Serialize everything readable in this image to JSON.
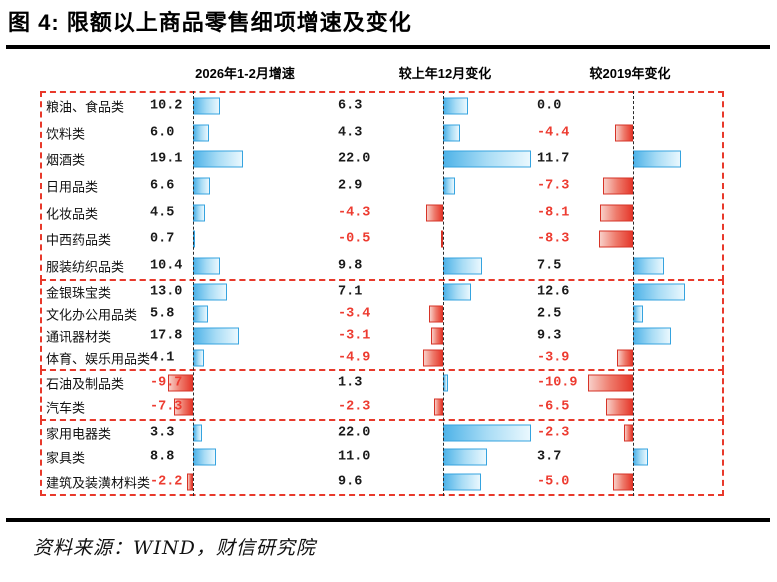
{
  "title": "图 4:  限额以上商品零售细项增速及变化",
  "source": "资料来源：WIND，财信研究院",
  "colors": {
    "positive_bar": "#4fb3e8",
    "negative_bar": "#e5382b",
    "bar_border_blue": "#35a3df",
    "bar_border_red": "#d63327",
    "negative_text": "#ed3b30",
    "positive_text": "#1a1a1a",
    "group_border": "#e8392b"
  },
  "chart_data": {
    "type": "bar",
    "orientation": "horizontal",
    "series_names": [
      "2026年1-2月增速",
      "较上年12月变化",
      "较2019年变化"
    ],
    "unit": "%",
    "axis_note": "three panels sharing category rows; bars extend from zero axis, blue=positive, red=negative",
    "groups": [
      {
        "rows": [
          {
            "label": "粮油、食品类",
            "values": [
              "10.2",
              "6.3",
              "0.0"
            ]
          },
          {
            "label": "饮料类",
            "values": [
              "6.0",
              "4.3",
              "-4.4"
            ]
          },
          {
            "label": "烟酒类",
            "values": [
              "19.1",
              "22.0",
              "11.7"
            ]
          },
          {
            "label": "日用品类",
            "values": [
              "6.6",
              "2.9",
              "-7.3"
            ]
          },
          {
            "label": "化妆品类",
            "values": [
              "4.5",
              "-4.3",
              "-8.1"
            ]
          },
          {
            "label": "中西药品类",
            "values": [
              "0.7",
              "-0.5",
              "-8.3"
            ]
          },
          {
            "label": "服装纺织品类",
            "values": [
              "10.4",
              "9.8",
              "7.5"
            ]
          }
        ]
      },
      {
        "rows": [
          {
            "label": "金银珠宝类",
            "values": [
              "13.0",
              "7.1",
              "12.6"
            ]
          },
          {
            "label": "文化办公用品类",
            "values": [
              "5.8",
              "-3.4",
              "2.5"
            ]
          },
          {
            "label": "通讯器材类",
            "values": [
              "17.8",
              "-3.1",
              "9.3"
            ]
          },
          {
            "label": "体育、娱乐用品类",
            "values": [
              "4.1",
              "-4.9",
              "-3.9"
            ]
          }
        ]
      },
      {
        "rows": [
          {
            "label": "石油及制品类",
            "values": [
              "-9.7",
              "1.3",
              "-10.9"
            ]
          },
          {
            "label": "汽车类",
            "values": [
              "-7.3",
              "-2.3",
              "-6.5"
            ]
          }
        ]
      },
      {
        "rows": [
          {
            "label": "家用电器类",
            "values": [
              "3.3",
              "22.0",
              "-2.3"
            ]
          },
          {
            "label": "家具类",
            "values": [
              "8.8",
              "11.0",
              "3.7"
            ]
          },
          {
            "label": "建筑及装潢材料类",
            "values": [
              "-2.2",
              "9.6",
              "-5.0"
            ]
          }
        ]
      }
    ]
  }
}
